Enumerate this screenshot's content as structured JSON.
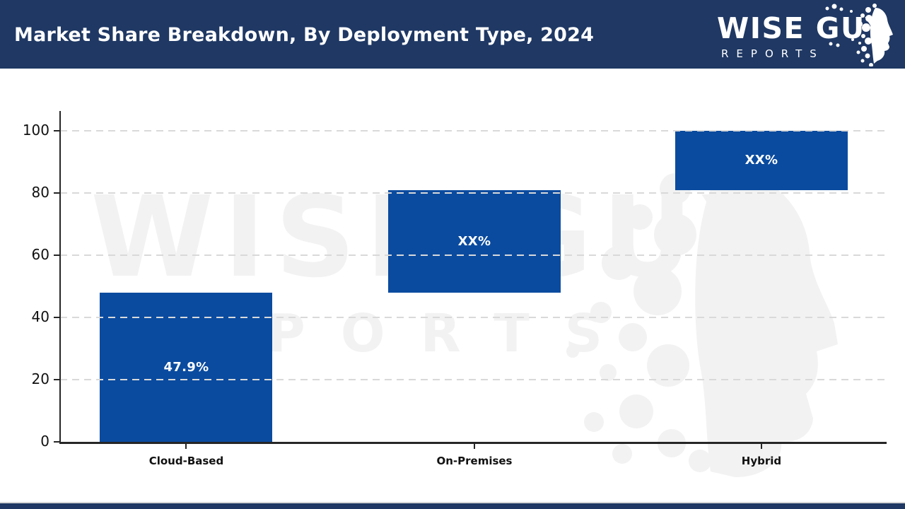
{
  "header": {
    "title": "Market Share Breakdown, By Deployment Type, 2024",
    "logo": {
      "line1": "WISE GUY",
      "line2": "REPORTS"
    }
  },
  "watermark": {
    "line1": "WISE GUY",
    "line2": "REPORTS"
  },
  "colors": {
    "header_bg": "#1f3864",
    "footer_bg": "#1f3864",
    "bar": "#0a4b9f",
    "bar_label": "#ffffff",
    "gridline": "#d9d9d9",
    "axis": "#262626",
    "watermark": "#f2f2f2"
  },
  "chart_data": {
    "type": "bar",
    "subtype": "waterfall",
    "title": "Market Share Breakdown, By Deployment Type, 2024",
    "categories": [
      "Cloud-Based",
      "On-Premises",
      "Hybrid"
    ],
    "segments": [
      {
        "category": "Cloud-Based",
        "start": 0,
        "end": 47.9,
        "label": "47.9%"
      },
      {
        "category": "On-Premises",
        "start": 47.9,
        "end": 81,
        "label": "XX%"
      },
      {
        "category": "Hybrid",
        "start": 81,
        "end": 100,
        "label": "XX%"
      }
    ],
    "yticks": [
      0,
      20,
      40,
      60,
      80,
      100
    ],
    "ylim": [
      0,
      100
    ],
    "grid": "dashed-horizontal",
    "legend": null,
    "xlabel": "",
    "ylabel": ""
  }
}
